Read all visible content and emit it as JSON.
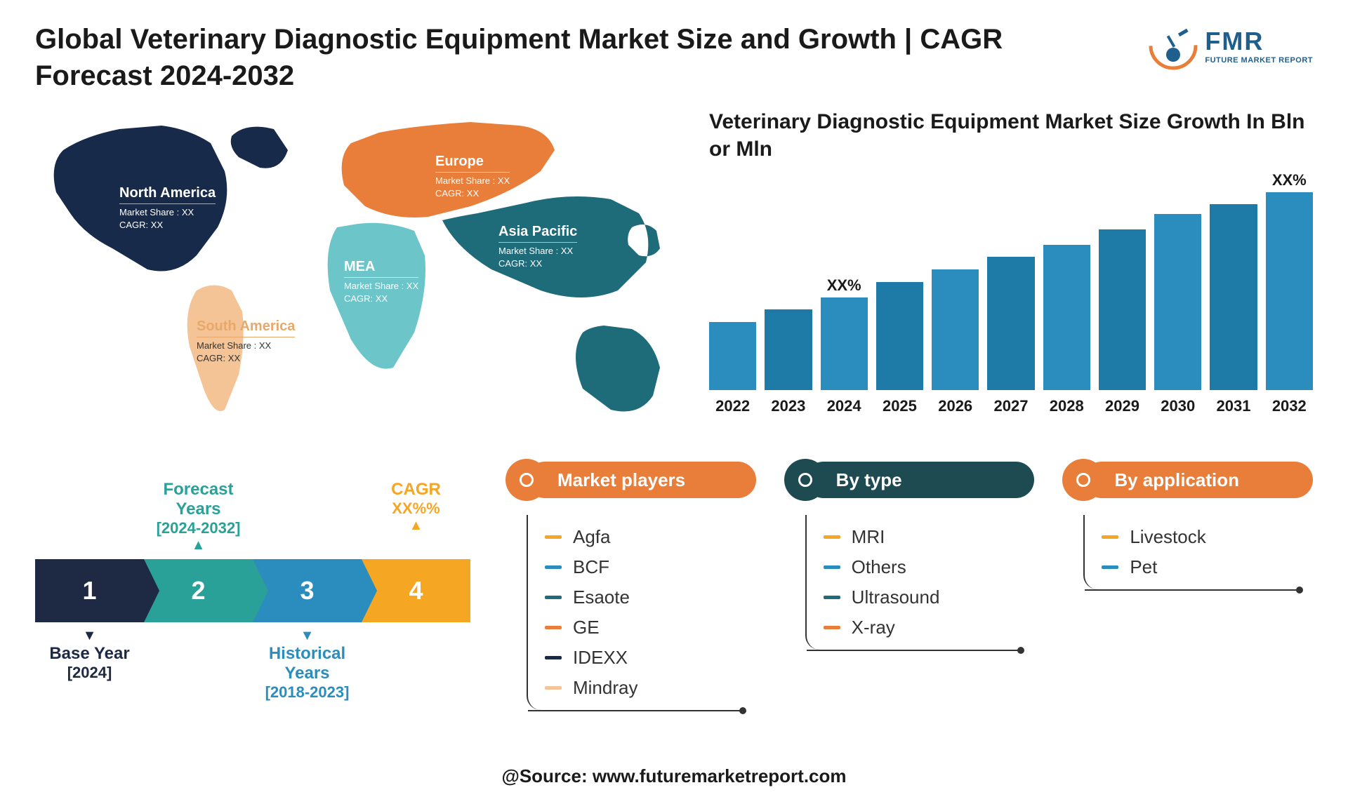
{
  "title": "Global Veterinary Diagnostic Equipment Market Size and Growth | CAGR Forecast 2024-2032",
  "logo": {
    "fmr": "FMR",
    "sub": "FUTURE MARKET REPORT"
  },
  "map": {
    "regions": [
      {
        "key": "na",
        "name": "North America",
        "share": "Market Share : XX",
        "cagr": "CAGR: XX",
        "color": "#182a4a"
      },
      {
        "key": "sa",
        "name": "South America",
        "share": "Market Share : XX",
        "cagr": "CAGR: XX",
        "color": "#f4c396"
      },
      {
        "key": "eu",
        "name": "Europe",
        "share": "Market Share : XX",
        "cagr": "CAGR: XX",
        "color": "#e87e3a"
      },
      {
        "key": "mea",
        "name": "MEA",
        "share": "Market Share : XX",
        "cagr": "CAGR: XX",
        "color": "#6bc5c9"
      },
      {
        "key": "ap",
        "name": "Asia Pacific",
        "share": "Market Share : XX",
        "cagr": "CAGR: XX",
        "color": "#1e6b7a"
      }
    ]
  },
  "chart": {
    "title": "Veterinary Diagnostic Equipment Market Size Growth In Bln or Mln",
    "type": "bar",
    "years": [
      "2022",
      "2023",
      "2024",
      "2025",
      "2026",
      "2027",
      "2028",
      "2029",
      "2030",
      "2031",
      "2032"
    ],
    "values": [
      110,
      130,
      150,
      175,
      195,
      215,
      235,
      260,
      285,
      300,
      320
    ],
    "max": 340,
    "bar_color": "#2b8cbe",
    "bar_color_alt": "#1e7ba8",
    "annotations": [
      {
        "index": 2,
        "text": "XX%"
      },
      {
        "index": 10,
        "text": "XX%"
      }
    ],
    "label_fontsize": 22,
    "label_weight": 700,
    "background": "#ffffff"
  },
  "timeline": {
    "segments": [
      {
        "num": "1",
        "color": "#1e2a44",
        "label": "Base Year",
        "sub": "[2024]",
        "label_color": "#1e2a44",
        "pos": "bottom"
      },
      {
        "num": "2",
        "color": "#2aa198",
        "label": "Forecast Years",
        "sub": "[2024-2032]",
        "label_color": "#2aa198",
        "pos": "top"
      },
      {
        "num": "3",
        "color": "#2b8cbe",
        "label": "Historical Years",
        "sub": "[2018-2023]",
        "label_color": "#2b8cbe",
        "pos": "bottom"
      },
      {
        "num": "4",
        "color": "#f5a623",
        "label": "CAGR",
        "sub": "XX%%",
        "label_color": "#f5a623",
        "pos": "top"
      }
    ]
  },
  "categories": [
    {
      "title": "Market players",
      "pill_color": "#e87e3a",
      "circle_color": "#e87e3a",
      "items": [
        {
          "label": "Agfa",
          "bullet": "#f5a623"
        },
        {
          "label": "BCF",
          "bullet": "#2b8cbe"
        },
        {
          "label": "Esaote",
          "bullet": "#1e6b7a"
        },
        {
          "label": "GE",
          "bullet": "#e87e3a"
        },
        {
          "label": "IDEXX",
          "bullet": "#182a4a"
        },
        {
          "label": "Mindray",
          "bullet": "#f4c396"
        }
      ]
    },
    {
      "title": "By type",
      "pill_color": "#1e4a52",
      "circle_color": "#1e4a52",
      "items": [
        {
          "label": "MRI",
          "bullet": "#f5a623"
        },
        {
          "label": "Others",
          "bullet": "#2b8cbe"
        },
        {
          "label": "Ultrasound",
          "bullet": "#1e6b7a"
        },
        {
          "label": "X-ray",
          "bullet": "#e87e3a"
        }
      ]
    },
    {
      "title": "By application",
      "pill_color": "#e87e3a",
      "circle_color": "#e87e3a",
      "items": [
        {
          "label": "Livestock",
          "bullet": "#f5a623"
        },
        {
          "label": "Pet",
          "bullet": "#2b8cbe"
        }
      ]
    }
  ],
  "source": "@Source: www.futuremarketreport.com"
}
